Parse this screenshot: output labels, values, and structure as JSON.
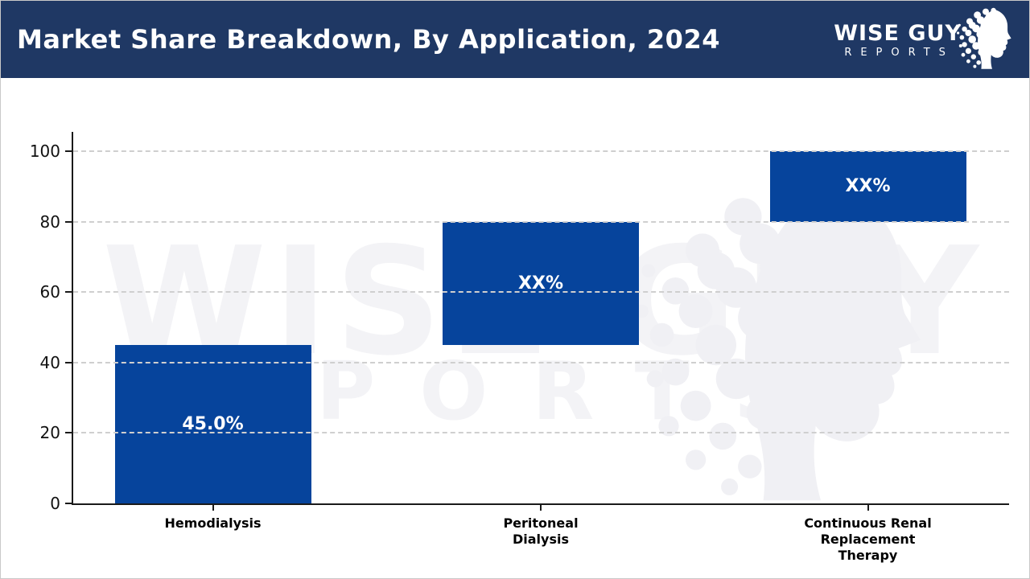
{
  "header": {
    "title": "Market Share Breakdown, By Application, 2024",
    "logo_line1": "WISE GUY",
    "logo_line2": "REPORTS"
  },
  "watermark": {
    "line1": "WISE GUY",
    "line2": "PORTS"
  },
  "colors": {
    "header_bg": "#1f3864",
    "bar": "#06449c",
    "bar_label": "#ffffff",
    "grid": "#cfcfcf",
    "axis": "#1a1a1a",
    "watermark": "#f3f3f6"
  },
  "chart_data": {
    "type": "bar",
    "subtype": "floating_segment_waterfall",
    "title": "Market Share Breakdown, By Application, 2024",
    "categories": [
      "Hemodialysis",
      "Peritoneal Dialysis",
      "Continuous Renal Replacement Therapy"
    ],
    "category_label_lines": [
      [
        "Hemodialysis"
      ],
      [
        "Peritoneal",
        "Dialysis"
      ],
      [
        "Continuous Renal",
        "Replacement",
        "Therapy"
      ]
    ],
    "bars": [
      {
        "category": "Hemodialysis",
        "start": 0,
        "end": 45,
        "label": "45.0%"
      },
      {
        "category": "Peritoneal Dialysis",
        "start": 45,
        "end": 80,
        "label": "XX%"
      },
      {
        "category": "Continuous Renal Replacement Therapy",
        "start": 80,
        "end": 100,
        "label": "XX%"
      }
    ],
    "xlabel": "",
    "ylabel": "",
    "ylim": [
      0,
      100
    ],
    "yticks": [
      0,
      20,
      40,
      60,
      80,
      100
    ],
    "grid": "horizontal dashed, drawn over bars",
    "legend": "none"
  }
}
